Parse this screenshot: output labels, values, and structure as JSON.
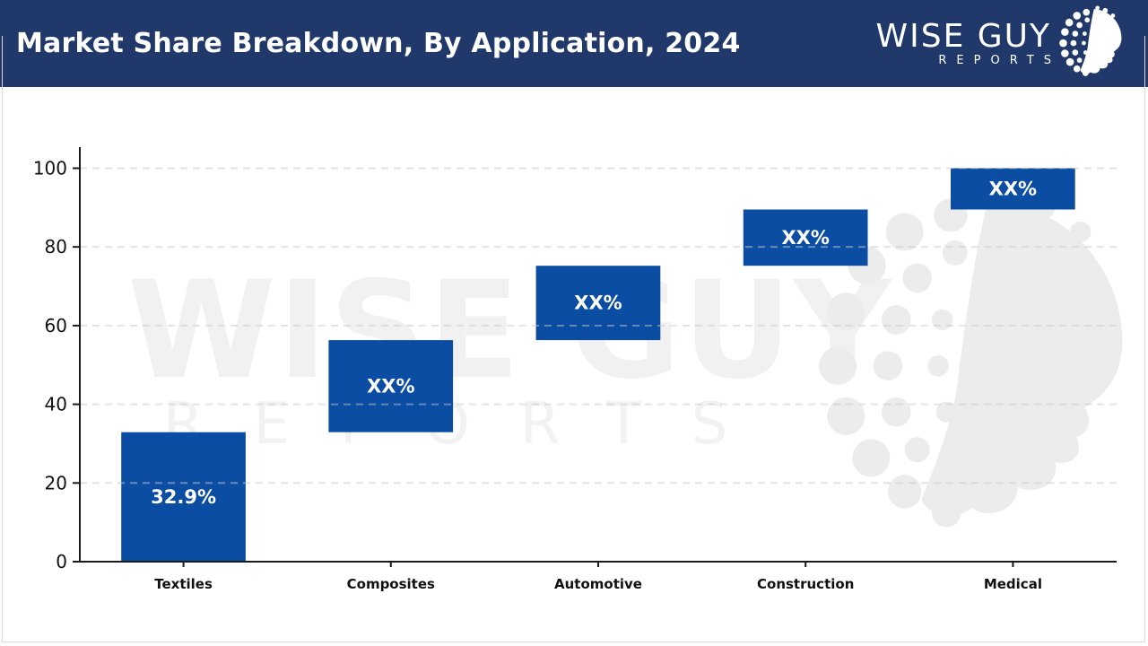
{
  "header": {
    "title": "Market Share Breakdown, By Application, 2024",
    "bg_color": "#20396a",
    "logo": {
      "line1": "WISE GUY",
      "line2": "REPORTS"
    }
  },
  "watermark": {
    "line1": "WISE GUY",
    "line2": "REPORTS"
  },
  "chart_data": {
    "type": "bar",
    "subtype": "waterfall",
    "title": "Market Share Breakdown, By Application, 2024",
    "categories": [
      "Textiles",
      "Composites",
      "Automotive",
      "Construction",
      "Medical"
    ],
    "bars": [
      {
        "category": "Textiles",
        "start": 0,
        "end": 32.9,
        "value": 32.9,
        "label": "32.9%"
      },
      {
        "category": "Composites",
        "start": 32.9,
        "end": 56.3,
        "value": 23.4,
        "label": "XX%"
      },
      {
        "category": "Automotive",
        "start": 56.3,
        "end": 75.2,
        "value": 18.9,
        "label": "XX%"
      },
      {
        "category": "Construction",
        "start": 75.2,
        "end": 89.5,
        "value": 14.3,
        "label": "XX%"
      },
      {
        "category": "Medical",
        "start": 89.5,
        "end": 100,
        "value": 10.5,
        "label": "XX%"
      }
    ],
    "yticks": [
      0,
      20,
      40,
      60,
      80,
      100
    ],
    "ylim": [
      0,
      105
    ],
    "grid": true,
    "grid_style": "dashed",
    "legend": "none",
    "bar_color": "#0b4da2",
    "label_color": "#ffffff",
    "axis_color": "#1a1a1a"
  }
}
